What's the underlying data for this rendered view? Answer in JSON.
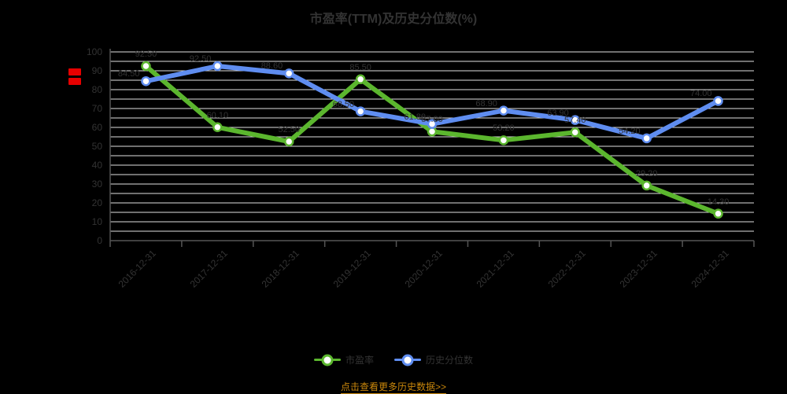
{
  "chart_data": {
    "type": "line",
    "title": "市盈率(TTM)及历史分位数(%)",
    "categories": [
      "2016-12-31",
      "2017-12-31",
      "2018-12-31",
      "2019-12-31",
      "2020-12-31",
      "2021-12-31",
      "2022-12-31",
      "2023-12-31",
      "2024-12-31"
    ],
    "series": [
      {
        "name": "市盈率",
        "color": "#5bb62e",
        "values": [
          92.5,
          60.1,
          52.5,
          85.5,
          57.8,
          53.2,
          57.4,
          29.2,
          14.3
        ],
        "point_labels": [
          "92.50",
          "60.10",
          "52.50",
          "85.50",
          "57.80",
          "53.20",
          "57.40",
          "29.20",
          "14.30"
        ]
      },
      {
        "name": "历史分位数",
        "color": "#5f8df0",
        "values": [
          84.5,
          92.5,
          88.6,
          68.5,
          61.8,
          68.9,
          63.9,
          54.2,
          74.0
        ],
        "point_labels": [
          "84.50",
          "92.50",
          "88.60",
          "68.50",
          "61.80",
          "68.90",
          "63.90",
          "54.20",
          "74.00"
        ]
      }
    ],
    "yAxis": {
      "min": 0,
      "max": 100,
      "label_step": 10,
      "grid_step": 5,
      "labels": [
        "100",
        "90",
        "80",
        "70",
        "60",
        "50",
        "40",
        "30",
        "20",
        "10",
        "0"
      ]
    },
    "grid": true,
    "legend_position": "bottom",
    "styles": {
      "grid_color": "#e0e0e0",
      "axis_color": "#555555",
      "text_color": "#333333",
      "marker_fill": "#ffffff"
    }
  },
  "badge": {
    "icon": "red-double-block",
    "color": "#e60000"
  },
  "footer": {
    "link_text": "点击查看更多历史数据>>",
    "color": "#c8860b"
  }
}
